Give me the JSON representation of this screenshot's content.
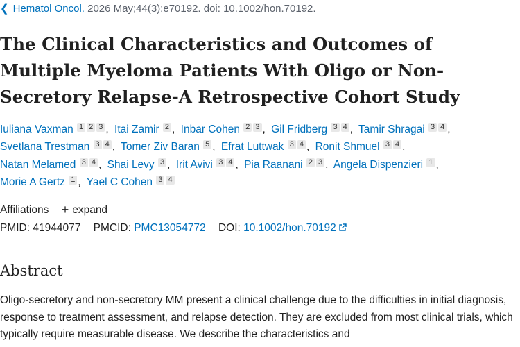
{
  "citation": {
    "journal": "Hematol Oncol.",
    "details": "2026 May;44(3):e70192. doi: 10.1002/hon.70192."
  },
  "title": "The Clinical Characteristics and Outcomes of Multiple Myeloma Patients With Oligo or Non-Secretory Relapse-A Retrospective Cohort Study",
  "authors": [
    {
      "name": "Iuliana Vaxman",
      "affs": [
        "1",
        "2",
        "3"
      ]
    },
    {
      "name": "Itai Zamir",
      "affs": [
        "2"
      ]
    },
    {
      "name": "Inbar Cohen",
      "affs": [
        "2",
        "3"
      ]
    },
    {
      "name": "Gil Fridberg",
      "affs": [
        "3",
        "4"
      ]
    },
    {
      "name": "Tamir Shragai",
      "affs": [
        "3",
        "4"
      ]
    },
    {
      "name": "Svetlana Trestman",
      "affs": [
        "3",
        "4"
      ]
    },
    {
      "name": "Tomer Ziv Baran",
      "affs": [
        "5"
      ]
    },
    {
      "name": "Efrat Luttwak",
      "affs": [
        "3",
        "4"
      ]
    },
    {
      "name": "Ronit Shmuel",
      "affs": [
        "3",
        "4"
      ]
    },
    {
      "name": "Natan Melamed",
      "affs": [
        "3",
        "4"
      ]
    },
    {
      "name": "Shai Levy",
      "affs": [
        "3"
      ]
    },
    {
      "name": "Irit Avivi",
      "affs": [
        "3",
        "4"
      ]
    },
    {
      "name": "Pia Raanani",
      "affs": [
        "2",
        "3"
      ]
    },
    {
      "name": "Angela Dispenzieri",
      "affs": [
        "1"
      ]
    },
    {
      "name": "Morie A Gertz",
      "affs": [
        "1"
      ]
    },
    {
      "name": "Yael C Cohen",
      "affs": [
        "3",
        "4"
      ]
    }
  ],
  "affiliations": {
    "label": "Affiliations",
    "expand_label": "expand"
  },
  "identifiers": {
    "pmid_label": "PMID:",
    "pmid": "41944077",
    "pmcid_label": "PMCID:",
    "pmcid": "PMC13054772",
    "doi_label": "DOI:",
    "doi": "10.1002/hon.70192"
  },
  "abstract": {
    "heading": "Abstract",
    "text": "Oligo-secretory and non-secretory MM present a clinical challenge due to the difficulties in initial diagnosis, response to treatment assessment, and relapse detection. They are excluded from most clinical trials, which typically require measurable disease. We describe the characteristics and"
  },
  "icons": {
    "back": "chevron-left-icon",
    "expand": "plus-icon",
    "external": "external-link-icon"
  },
  "colors": {
    "link": "#0071bc",
    "text": "#212121",
    "muted": "#5b616b",
    "badge_bg": "#e8e8e8"
  }
}
